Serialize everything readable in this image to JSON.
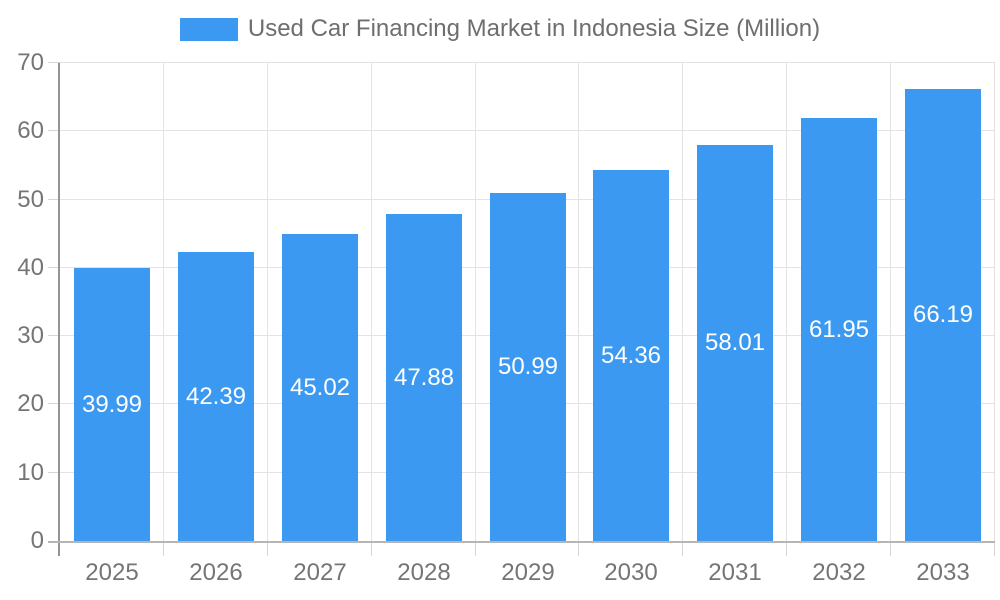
{
  "legend": {
    "position": "top",
    "items": [
      {
        "label": "Used Car Financing Market in Indonesia Size (Million)",
        "swatch_color": "#3b99f2"
      }
    ]
  },
  "chart_data": {
    "type": "bar",
    "title": "Used Car Financing Market in Indonesia Size (Million)",
    "categories": [
      "2025",
      "2026",
      "2027",
      "2028",
      "2029",
      "2030",
      "2031",
      "2032",
      "2033"
    ],
    "values": [
      39.99,
      42.39,
      45.02,
      47.88,
      50.99,
      54.36,
      58.01,
      61.95,
      66.19
    ],
    "value_labels": [
      "39.99",
      "42.39",
      "45.02",
      "47.88",
      "50.99",
      "54.36",
      "58.01",
      "61.95",
      "66.19"
    ],
    "xlabel": "",
    "ylabel": "",
    "ylim": [
      0,
      70
    ],
    "yticks": [
      0,
      10,
      20,
      30,
      40,
      50,
      60,
      70
    ],
    "ytick_labels": [
      "0",
      "10",
      "20",
      "30",
      "40",
      "50",
      "60",
      "70"
    ],
    "grid": true,
    "legend_position": "top",
    "colors": {
      "bar": "#3b99f2",
      "bar_label_text": "#ffffff",
      "axis_text": "#757575",
      "legend_text": "#6e6e6e",
      "gridline": "#e3e3e3",
      "tick": "#d5d5d5",
      "y_axis_line": "#949494",
      "x_axis_line": "#b5b5b5"
    }
  }
}
